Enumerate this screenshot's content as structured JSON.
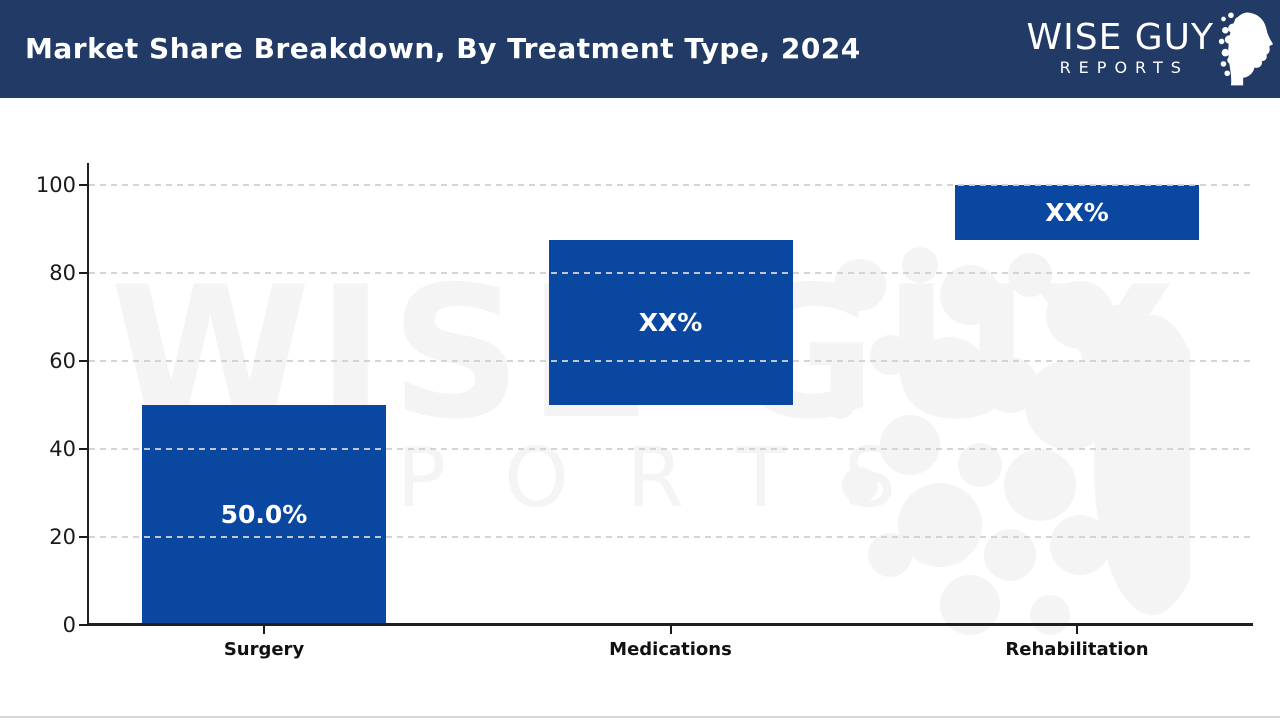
{
  "header": {
    "title": "Market Share Breakdown, By Treatment Type, 2024",
    "logo": {
      "line1": "WISE GUY",
      "line2": "REPORTS"
    }
  },
  "watermark": {
    "line1": "WISE GUY",
    "line2": "REPORTS"
  },
  "chart_data": {
    "type": "bar",
    "subtype": "waterfall-stacked",
    "title": "Market Share Breakdown, By Treatment Type, 2024",
    "categories": [
      "Surgery",
      "Medications",
      "Rehabilitation"
    ],
    "segments": [
      {
        "category": "Surgery",
        "start": 0,
        "end": 50,
        "label": "50.0%"
      },
      {
        "category": "Medications",
        "start": 50,
        "end": 87.5,
        "label": "XX%"
      },
      {
        "category": "Rehabilitation",
        "start": 87.5,
        "end": 100,
        "label": "XX%"
      }
    ],
    "values_pct": [
      50.0,
      37.5,
      12.5
    ],
    "xlabel": "",
    "ylabel": "",
    "ylim": [
      0,
      105
    ],
    "yticks": [
      0,
      20,
      40,
      60,
      80,
      100
    ],
    "grid": {
      "axis": "y",
      "style": "dashed",
      "color": "#d1d1d1",
      "drawn_over_bars": true
    },
    "colors": {
      "bar": "#0a47a0",
      "bar_label": "#ffffff",
      "axis": "#1a1a1a",
      "header_bg": "#213a66"
    }
  }
}
